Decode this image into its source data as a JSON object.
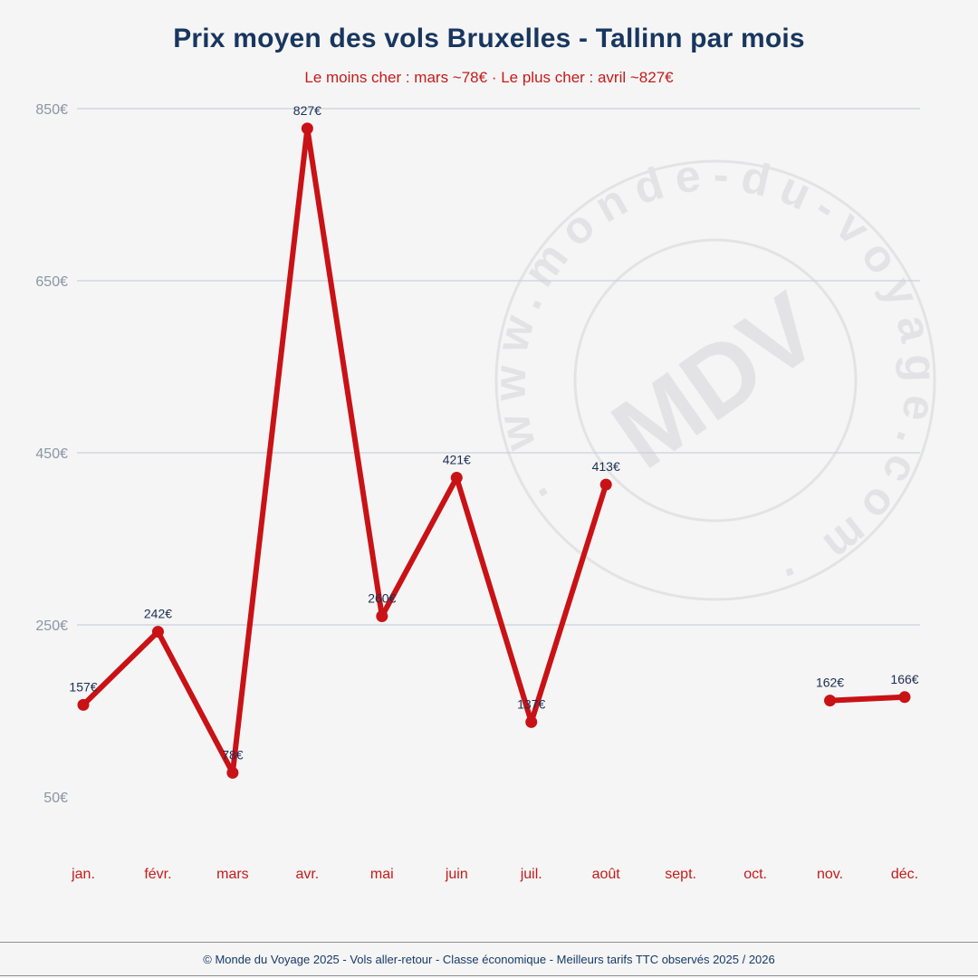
{
  "page": {
    "title": "Prix moyen des vols Bruxelles - Tallinn par mois",
    "subtitle": "Le moins cher : mars ~78€ · Le plus cher : avril ~827€",
    "footer": "© Monde du Voyage 2025 - Vols aller-retour - Classe économique - Meilleurs tarifs TTC observés 2025 / 2026",
    "watermark_text": "www.monde-du-voyage.com",
    "watermark_center": "MDV"
  },
  "colors": {
    "background": "#f5f5f5",
    "line": "#c91216",
    "point": "#c91216",
    "title": "#18365e",
    "subtitle": "#c51a1a",
    "axis_label": "#8b95a5",
    "month_label": "#c51a1a",
    "point_label": "#1c2e54",
    "grid": "#c9d0de",
    "watermark": "#e3e3e6",
    "footer": "#153a66"
  },
  "chart_data": {
    "type": "line",
    "title": "Prix moyen des vols Bruxelles - Tallinn par mois",
    "subtitle": "Le moins cher : mars ~78€ · Le plus cher : avril ~827€",
    "categories": [
      "jan.",
      "févr.",
      "mars",
      "avr.",
      "mai",
      "juin",
      "juil.",
      "août",
      "sept.",
      "oct.",
      "nov.",
      "déc."
    ],
    "values": [
      157,
      242,
      78,
      827,
      260,
      421,
      137,
      413,
      null,
      null,
      162,
      166
    ],
    "point_labels": [
      "157€",
      "242€",
      "78€",
      "827€",
      "260€",
      "421€",
      "137€",
      "413€",
      null,
      null,
      "162€",
      "166€"
    ],
    "xlabel": "",
    "ylabel": "",
    "ylim": [
      50,
      850
    ],
    "yticks": [
      {
        "value": 850,
        "label": "850€",
        "grid": true
      },
      {
        "value": 650,
        "label": "650€",
        "grid": true
      },
      {
        "value": 450,
        "label": "450€",
        "grid": true
      },
      {
        "value": 250,
        "label": "250€",
        "grid": true
      },
      {
        "value": 50,
        "label": "50€",
        "grid": false
      }
    ],
    "grid": true,
    "legend": false,
    "min_point": {
      "month": "mars",
      "value": 78
    },
    "max_point": {
      "month": "avril",
      "value": 827
    }
  }
}
